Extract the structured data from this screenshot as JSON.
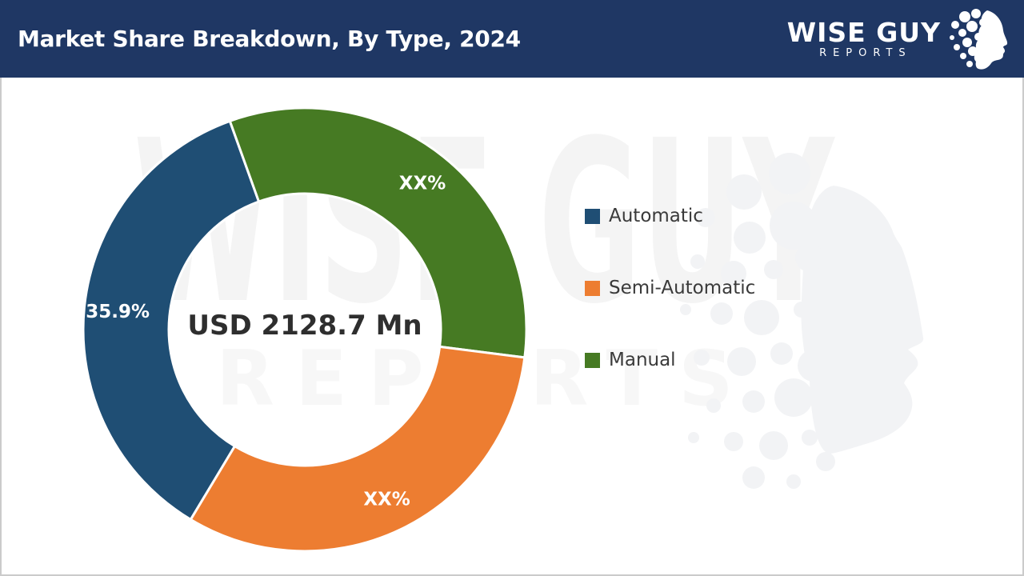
{
  "header": {
    "title": "Market Share Breakdown, By Type, 2024",
    "logo": {
      "primary": "WISE GUY",
      "secondary": "REPORTS"
    }
  },
  "watermark": {
    "line1": "WISE GUY",
    "line2": "REPORTS"
  },
  "chart_data": {
    "type": "donut",
    "title": "Market Share Breakdown, By Type, 2024",
    "center_label": "USD 2128.7 Mn",
    "legend_position": "right",
    "series": [
      {
        "name": "Automatic",
        "color": "#1F4E74",
        "value_pct": 35.9,
        "display_label": "35.9%"
      },
      {
        "name": "Semi-Automatic",
        "color": "#ED7D31",
        "value_pct": 31.6,
        "display_label": "XX%"
      },
      {
        "name": "Manual",
        "color": "#467A23",
        "value_pct": 32.5,
        "display_label": "XX%"
      }
    ],
    "draw_order": [
      0,
      2,
      1
    ],
    "start_angle_deg_clockwise_from_top": 211
  }
}
